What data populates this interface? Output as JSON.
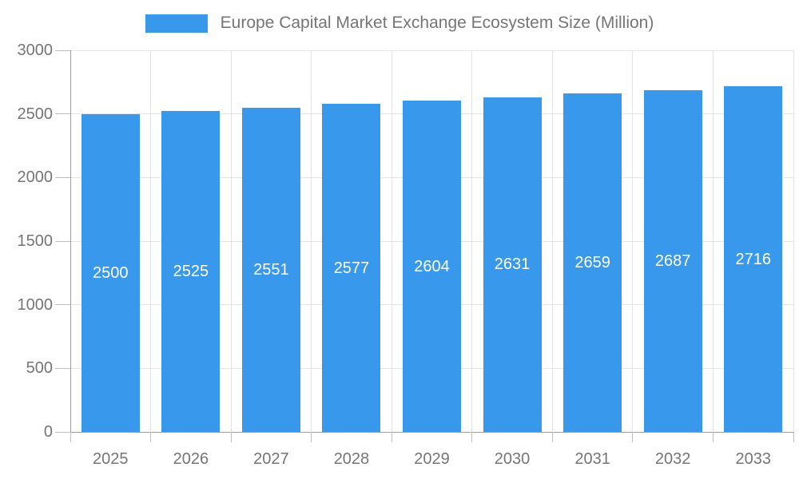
{
  "chart_data": {
    "type": "bar",
    "title": "Europe Capital Market Exchange Ecosystem Size (Million)",
    "categories": [
      "2025",
      "2026",
      "2027",
      "2028",
      "2029",
      "2030",
      "2031",
      "2032",
      "2033"
    ],
    "values": [
      2500,
      2525,
      2551,
      2577,
      2604,
      2631,
      2659,
      2687,
      2716
    ],
    "series": [
      {
        "name": "Europe Capital Market Exchange Ecosystem Size (Million)",
        "values": [
          2500,
          2525,
          2551,
          2577,
          2604,
          2631,
          2659,
          2687,
          2716
        ]
      }
    ],
    "xlabel": "",
    "ylabel": "",
    "ylim": [
      0,
      3000
    ],
    "yticks": [
      0,
      500,
      1000,
      1500,
      2000,
      2500,
      3000
    ],
    "grid": true,
    "legend_position": "top-center",
    "bar_value_labels": "inside-center"
  },
  "colors": {
    "bar": "#3899ec",
    "axis_line": "#9e9e9e",
    "gridline": "#e5e5e5",
    "tick": "#c0c0c0",
    "axis_label": "#757575",
    "bar_label": "#ffffff",
    "background": "#ffffff"
  }
}
